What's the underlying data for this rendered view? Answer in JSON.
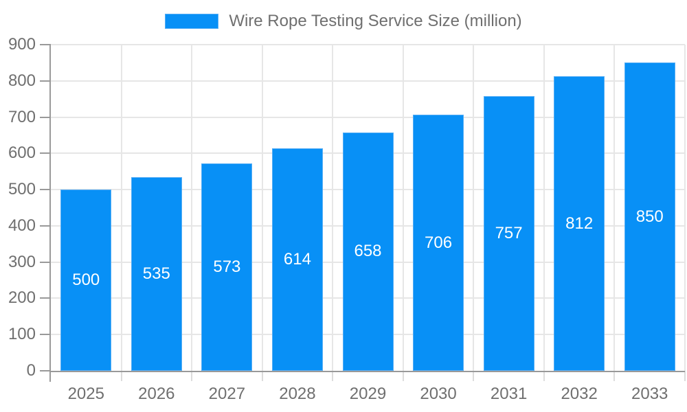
{
  "chart_data": {
    "type": "bar",
    "title": "Wire Rope Testing Service Size (million)",
    "series_name": "Wire Rope Testing Service Size (million)",
    "categories": [
      "2025",
      "2026",
      "2027",
      "2028",
      "2029",
      "2030",
      "2031",
      "2032",
      "2033"
    ],
    "values": [
      500,
      535,
      573,
      614,
      658,
      706,
      757,
      812,
      850
    ],
    "xlabel": "",
    "ylabel": "",
    "ylim": [
      0,
      900
    ],
    "y_ticks": [
      0,
      100,
      200,
      300,
      400,
      500,
      600,
      700,
      800,
      900
    ],
    "grid": true,
    "legend_position": "top",
    "value_labels": "centered-inside-bars"
  },
  "colors": {
    "bar_fill": "#0890f6",
    "bar_border": "#57aef5",
    "axis_line": "#999999",
    "grid_line": "#e6e6e6",
    "x_tick_mark": "#dcdcdc",
    "tick_label_text": "#6f6f6f",
    "legend_text": "#6f6f6f",
    "bar_value_text": "#ffffff",
    "background": "#ffffff"
  }
}
